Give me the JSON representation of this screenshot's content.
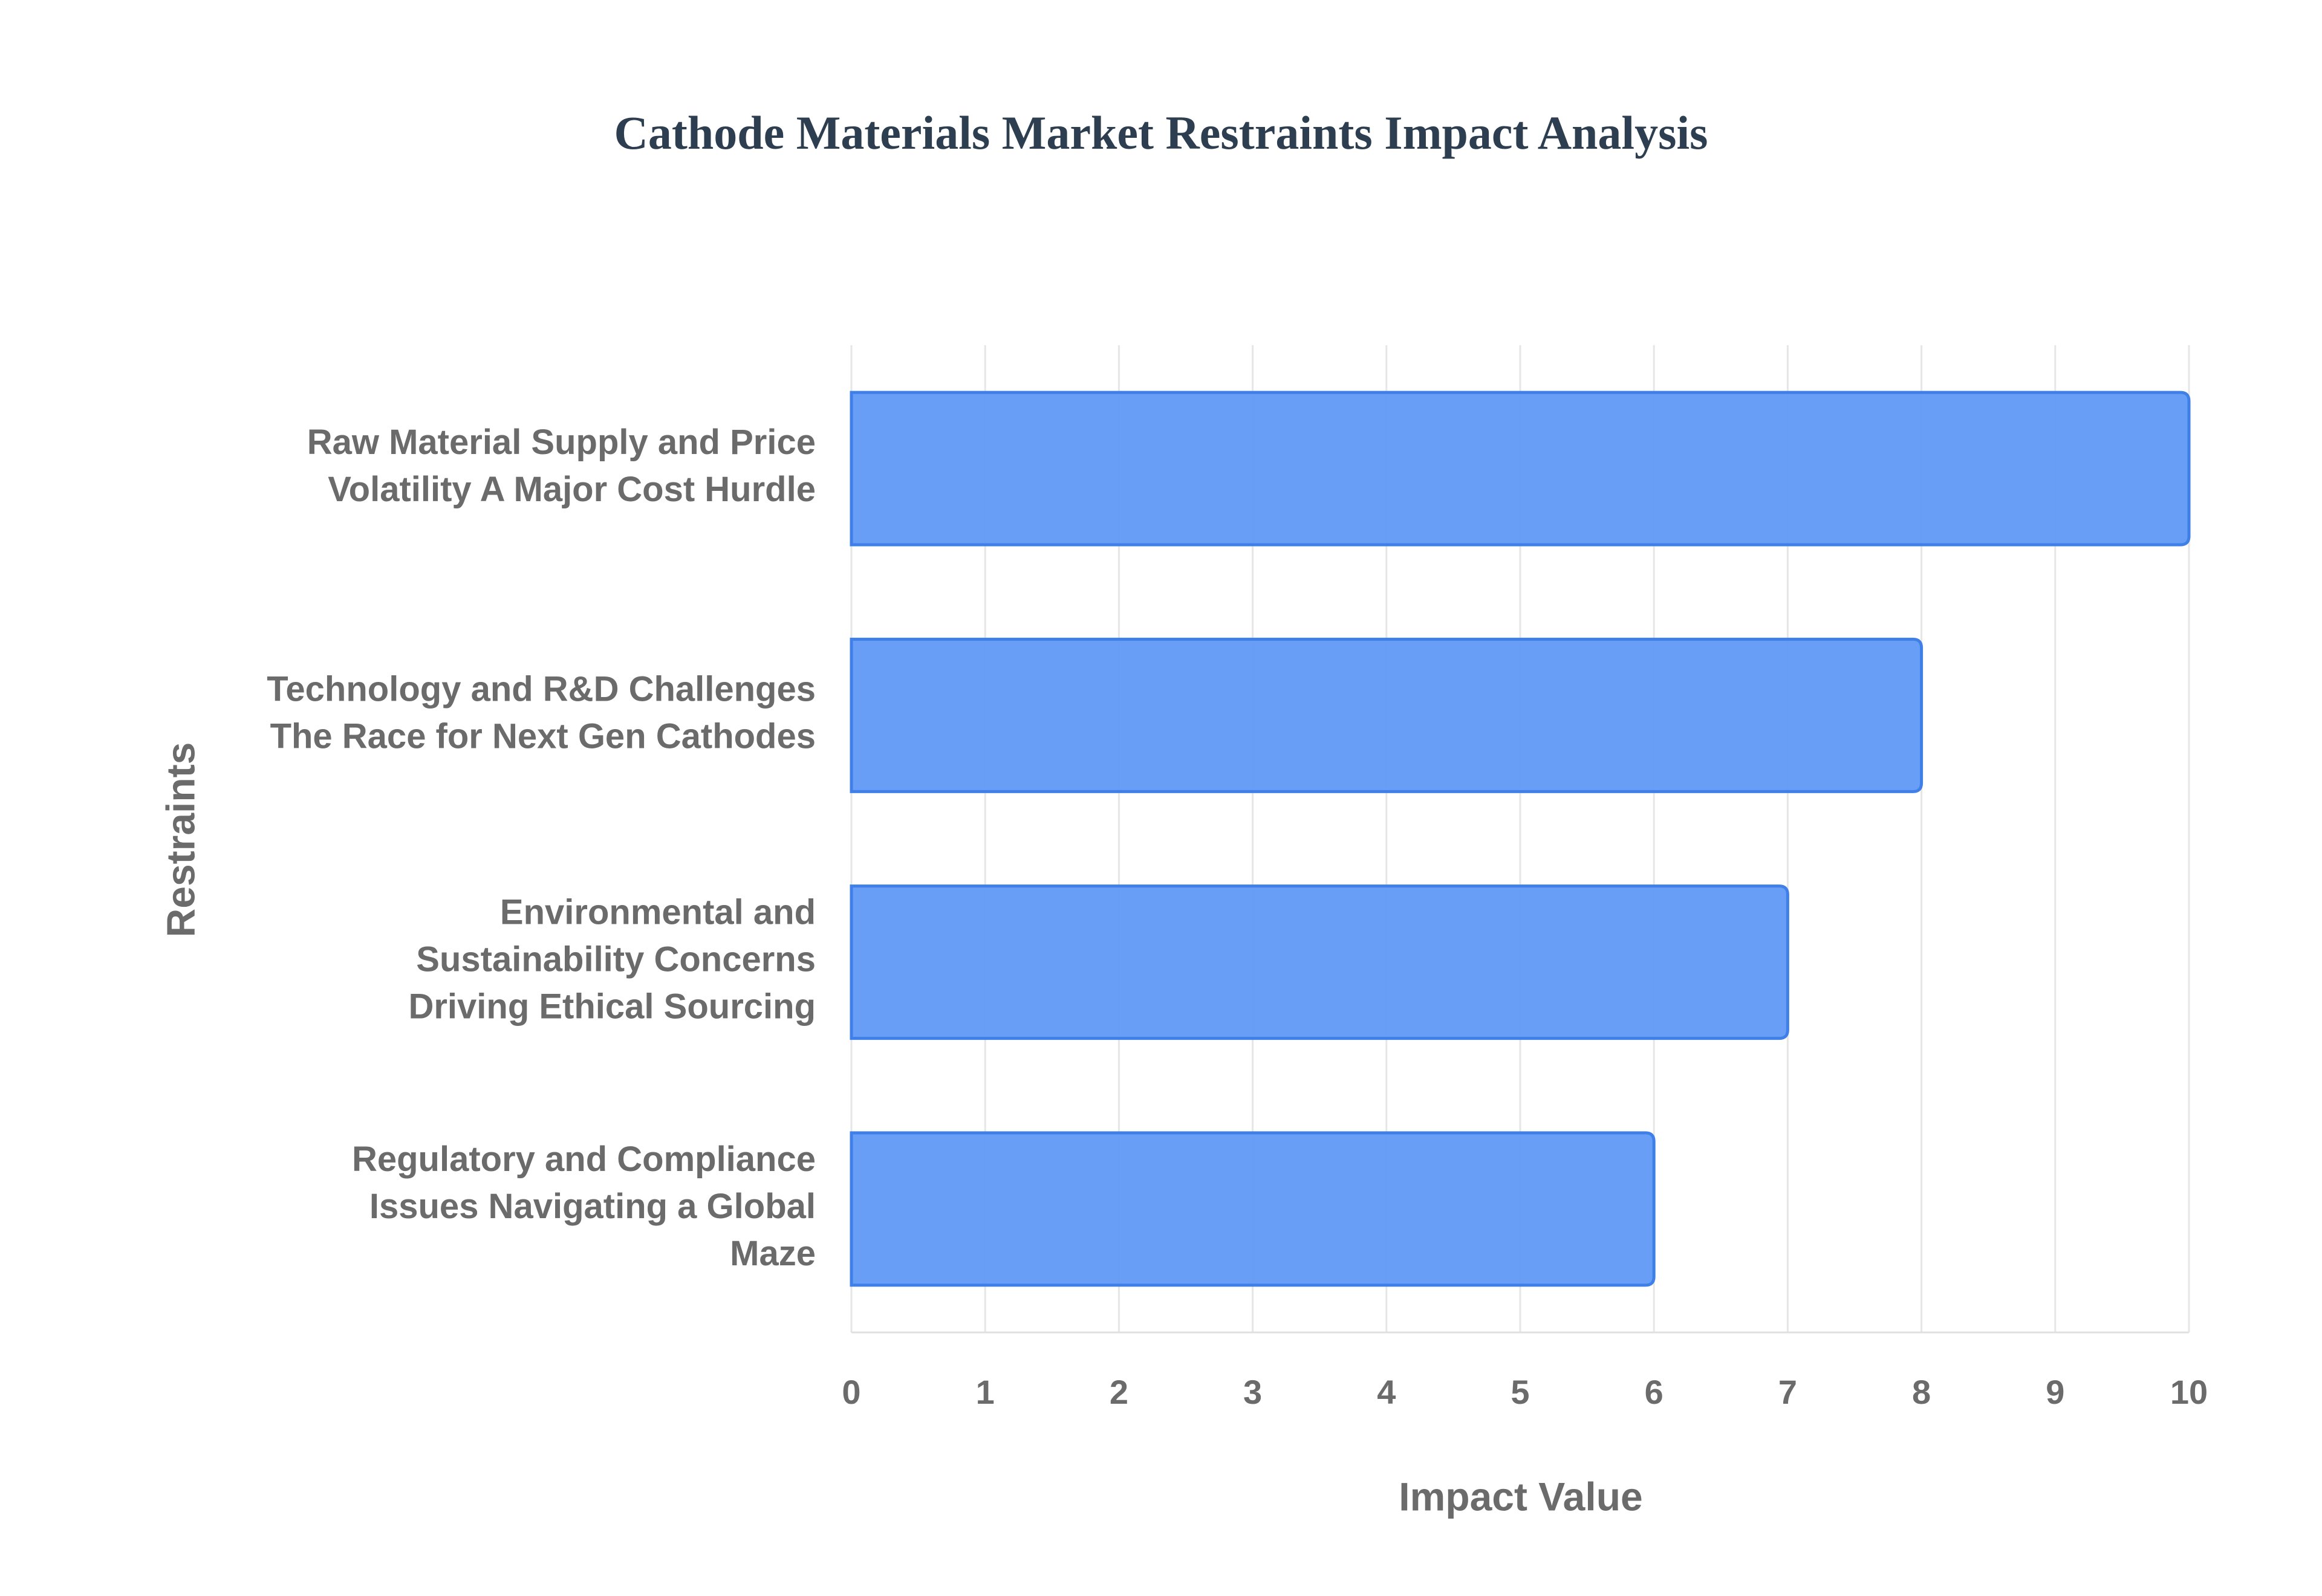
{
  "chart_data": {
    "type": "barh",
    "title": "Cathode Materials Market Restraints Impact Analysis",
    "xlabel": "Impact Value",
    "ylabel": "Restraints",
    "categories": [
      "Raw Material Supply and Price Volatility A Major Cost Hurdle",
      "Technology and R&D Challenges The Race for Next Gen Cathodes",
      "Environmental and Sustainability Concerns Driving Ethical Sourcing",
      "Regulatory and Compliance Issues Navigating a Global Maze"
    ],
    "values": [
      10,
      8,
      7,
      6
    ],
    "color": "#6199f5",
    "xlim": [
      0,
      10
    ],
    "xticks": [
      0,
      1,
      2,
      3,
      4,
      5,
      6,
      7,
      8,
      9,
      10
    ],
    "grid": true
  }
}
